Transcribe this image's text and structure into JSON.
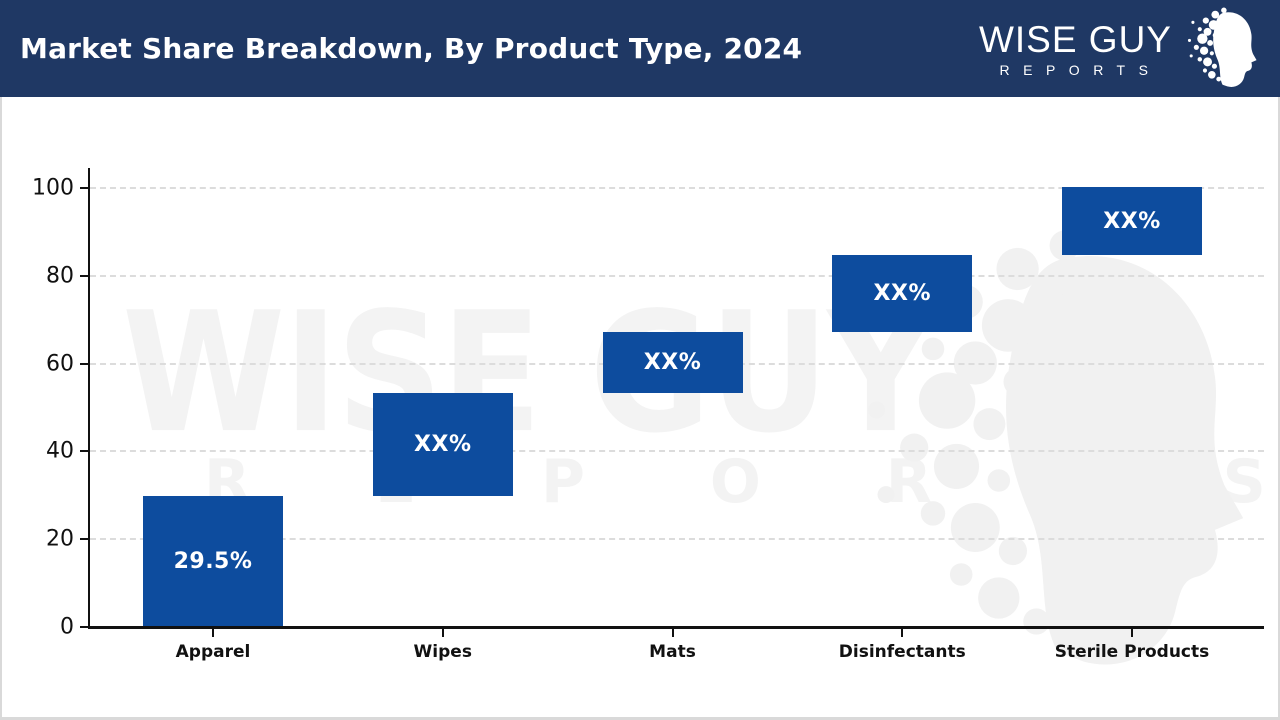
{
  "header": {
    "title": "Market Share Breakdown, By Product Type, 2024",
    "bg_color": "#1f3864",
    "logo": {
      "line1": "WISE GUY",
      "line2": "REPORTS",
      "head_icon": "dotted-head-profile"
    }
  },
  "watermark": {
    "line1": "WISE GUY",
    "line2": "R E P O R T S",
    "head_icon": "dotted-head-profile"
  },
  "chart_data": {
    "type": "bar",
    "subtype": "waterfall",
    "title": "Market Share Breakdown, By Product Type, 2024",
    "xlabel": "",
    "ylabel": "",
    "ylim": [
      0,
      100
    ],
    "yticks": [
      0,
      20,
      40,
      60,
      80,
      100
    ],
    "grid": "horizontal-dashed",
    "legend": "none",
    "bar_color": "#0d4c9e",
    "bar_label_color": "#ffffff",
    "categories": [
      "Apparel",
      "Wipes",
      "Mats",
      "Disinfectants",
      "Sterile Products"
    ],
    "segments": [
      {
        "category": "Apparel",
        "start": 0,
        "end": 29.5,
        "value": 29.5,
        "label": "29.5%"
      },
      {
        "category": "Wipes",
        "start": 29.5,
        "end": 53,
        "value": 23.5,
        "label": "XX%"
      },
      {
        "category": "Mats",
        "start": 53,
        "end": 67,
        "value": 14,
        "label": "XX%"
      },
      {
        "category": "Disinfectants",
        "start": 67,
        "end": 84.5,
        "value": 17.5,
        "label": "XX%"
      },
      {
        "category": "Sterile Products",
        "start": 84.5,
        "end": 100,
        "value": 15.5,
        "label": "XX%"
      }
    ]
  }
}
